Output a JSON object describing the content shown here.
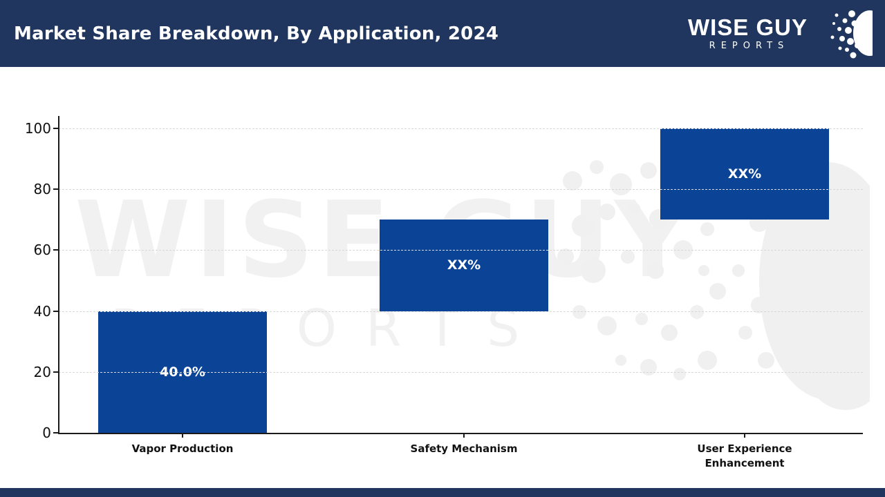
{
  "header": {
    "title": "Market Share Breakdown, By Application, 2024",
    "background": "#21365F",
    "logo": {
      "wordmark": "WISE GUY",
      "subtext": "REPORTS"
    }
  },
  "watermark": {
    "line1": "WISE GUY",
    "line2": "REPORTS"
  },
  "chart_data": {
    "type": "bar",
    "subtype": "floating-segment-bars (waterfall style market share)",
    "title": "Market Share Breakdown, By Application, 2024",
    "categories": [
      "Vapor Production",
      "Safety Mechanism",
      "User Experience Enhancement"
    ],
    "series": [
      {
        "name": "Vapor Production",
        "start": 0,
        "end": 40,
        "label": "40.0%"
      },
      {
        "name": "Safety Mechanism",
        "start": 40,
        "end": 70,
        "label": "XX%"
      },
      {
        "name": "User Experience Enhancement",
        "start": 70,
        "end": 100,
        "label": "XX%"
      }
    ],
    "xlabel": "",
    "ylabel": "",
    "yticks": [
      0,
      20,
      40,
      60,
      80,
      100
    ],
    "ylim": [
      0,
      104
    ],
    "grid": "horizontal dashed",
    "legend": "none",
    "bar_color": "#0B4397",
    "bar_label_color": "#ffffff",
    "axis_color": "#1a1a1a",
    "gridline_color": "#d8d8d8"
  }
}
